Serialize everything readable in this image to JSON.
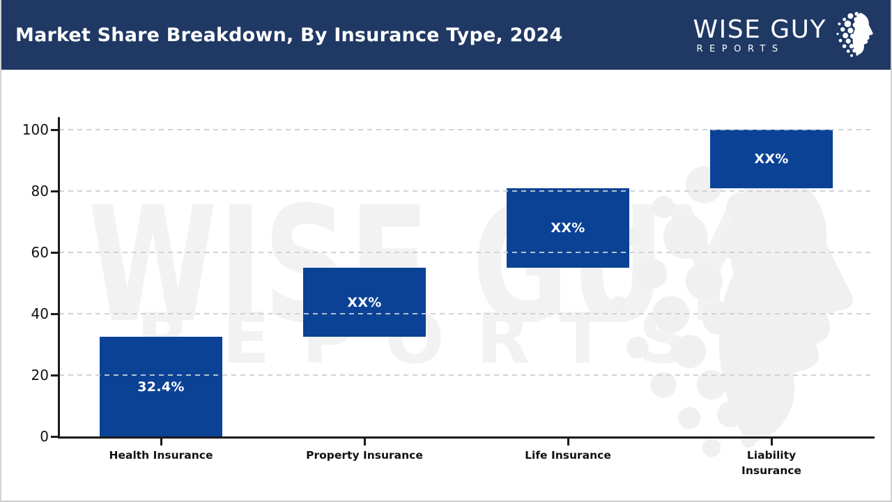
{
  "header": {
    "title": "Market Share Breakdown, By Insurance Type, 2024",
    "bg_color": "#1f3864",
    "logo": {
      "line1": "WISE GUY",
      "line2": "REPORTS"
    }
  },
  "watermark": {
    "line1": "WISE GUY",
    "line2": "REPORTS"
  },
  "chart_data": {
    "type": "bar",
    "subtype": "waterfall",
    "title": "Market Share Breakdown, By Insurance Type, 2024",
    "categories": [
      "Health Insurance",
      "Property Insurance",
      "Life Insurance",
      "Liability\nInsurance"
    ],
    "segments": [
      {
        "category": "Health Insurance",
        "start": 0,
        "end": 32.4,
        "label": "32.4%"
      },
      {
        "category": "Property Insurance",
        "start": 32.4,
        "end": 55,
        "label": "XX%"
      },
      {
        "category": "Life Insurance",
        "start": 55,
        "end": 81,
        "label": "XX%"
      },
      {
        "category": "Liability Insurance",
        "start": 81,
        "end": 100,
        "label": "XX%"
      }
    ],
    "xlabel": "",
    "ylabel": "",
    "ylim": [
      0,
      100
    ],
    "yticks": [
      0,
      20,
      40,
      60,
      80,
      100
    ],
    "grid": "horizontal-dashed",
    "legend": "none",
    "bar_color": "#0b4296",
    "bar_label_color": "#ffffff",
    "axis_color": "#1a1a1a"
  }
}
